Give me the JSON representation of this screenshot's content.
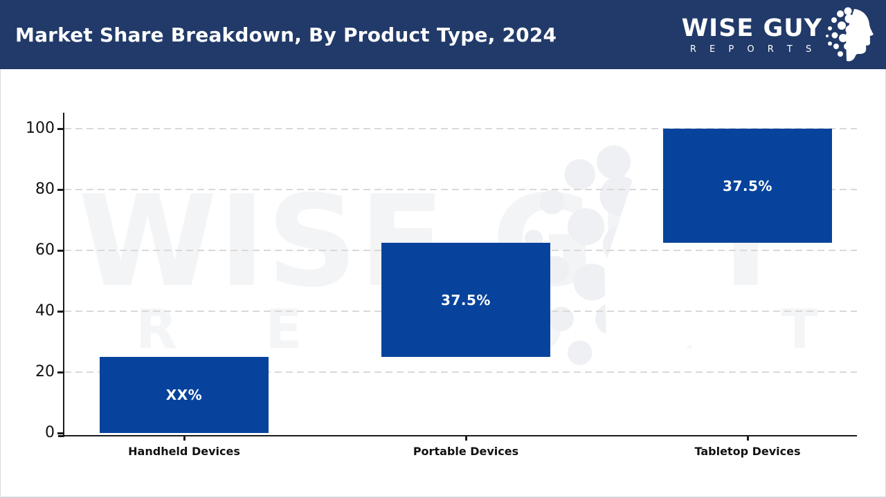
{
  "header": {
    "title": "Market Share Breakdown, By Product Type, 2024",
    "bg_color": "#213a69",
    "logo": {
      "line1": "WISE GUY",
      "line2": "R E P O R T S"
    }
  },
  "watermark": {
    "line1": "WISE GUY",
    "line2": "R E P O R T S"
  },
  "chart_data": {
    "type": "bar",
    "subtype": "floating-segment-waterfall",
    "title": "Market Share Breakdown, By Product Type, 2024",
    "categories": [
      "Handheld Devices",
      "Portable Devices",
      "Tabletop Devices"
    ],
    "bars": [
      {
        "category": "Handheld Devices",
        "start": 0,
        "end": 25,
        "label": "XX%"
      },
      {
        "category": "Portable Devices",
        "start": 25,
        "end": 62.5,
        "label": "37.5%"
      },
      {
        "category": "Tabletop Devices",
        "start": 62.5,
        "end": 100,
        "label": "37.5%"
      }
    ],
    "xlabel": "",
    "ylabel": "",
    "yticks": [
      0,
      20,
      40,
      60,
      80,
      100
    ],
    "ylim": [
      0,
      105
    ],
    "grid": "horizontal-dashed",
    "grid_color": "#d9d9d9",
    "bar_color": "#07439c",
    "bar_label_color": "#ffffff",
    "axis_color": "#1a1a1a",
    "legend": "none"
  }
}
